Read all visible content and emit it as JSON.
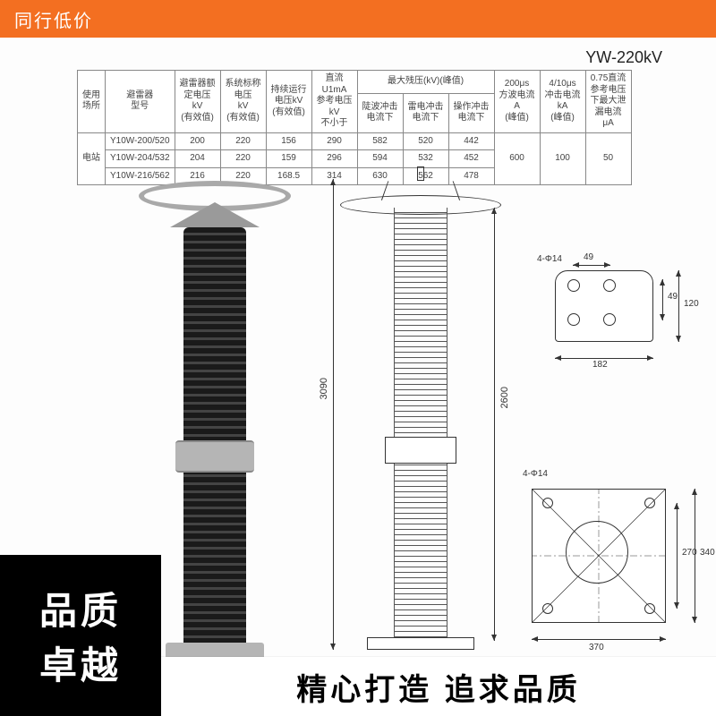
{
  "banner": {
    "text": "同行低价",
    "bg": "#f36f21",
    "fg": "#ffffff"
  },
  "model_label": "YW-220kV",
  "spec_table": {
    "header_row1": [
      {
        "label": "使用\n场所",
        "rowspan": 2
      },
      {
        "label": "避雷器\n型号",
        "rowspan": 2
      },
      {
        "label": "避雷器额\n定电压\nkV\n(有效值)",
        "rowspan": 2
      },
      {
        "label": "系统标称\n电压\nkV\n(有效值)",
        "rowspan": 2
      },
      {
        "label": "持续运行\n电压kV\n(有效值)",
        "rowspan": 2
      },
      {
        "label": "直流\nU1mA\n参考电压\nkV\n不小于",
        "rowspan": 2
      },
      {
        "label": "最大残压(kV)(峰值)",
        "colspan": 3
      },
      {
        "label": "200μs\n方波电流\nA\n(峰值)",
        "rowspan": 2
      },
      {
        "label": "4/10μs\n冲击电流\nkA\n(峰值)",
        "rowspan": 2
      },
      {
        "label": "0.75直流\n参考电压\n下最大泄\n漏电流\nμA",
        "rowspan": 2
      }
    ],
    "header_row2": [
      "陡波冲击\n电流下",
      "雷电冲击\n电流下",
      "操作冲击\n电流下"
    ],
    "rows": [
      {
        "use": "电站",
        "model": "Y10W-200/520",
        "rated": "200",
        "sys": "220",
        "cont": "156",
        "dc": "290",
        "steep": "582",
        "light": "520",
        "switch": "442",
        "sq": "600",
        "imp": "100",
        "leak": "50"
      },
      {
        "use": "",
        "model": "Y10W-204/532",
        "rated": "204",
        "sys": "220",
        "cont": "159",
        "dc": "296",
        "steep": "594",
        "light": "532",
        "switch": "452",
        "sq": "",
        "imp": "",
        "leak": ""
      },
      {
        "use": "",
        "model": "Y10W-216/562",
        "rated": "216",
        "sys": "220",
        "cont": "168.5",
        "dc": "314",
        "steep": "630",
        "light": "562",
        "switch": "478",
        "sq": "",
        "imp": "",
        "leak": ""
      }
    ]
  },
  "drawing": {
    "overall_height_mm": "3090",
    "insulator_height_mm": "2600",
    "top_detail": {
      "hole_note": "4-Φ14",
      "pitch_h_mm": "49",
      "pitch_v_mm": "49",
      "height_mm": "120",
      "width_mm": "182"
    },
    "base_detail": {
      "hole_note": "4-Φ14",
      "bolt_circle_mm": "270",
      "plate_mm": "340",
      "outer_mm": "370"
    }
  },
  "overlay": {
    "block_line1": "品质",
    "block_line2": "卓越",
    "strap_text": "精心打造  追求品质"
  },
  "colors": {
    "line": "#333333",
    "metal": "#a9a9a9",
    "shed_dark": "#1a1a1a"
  }
}
